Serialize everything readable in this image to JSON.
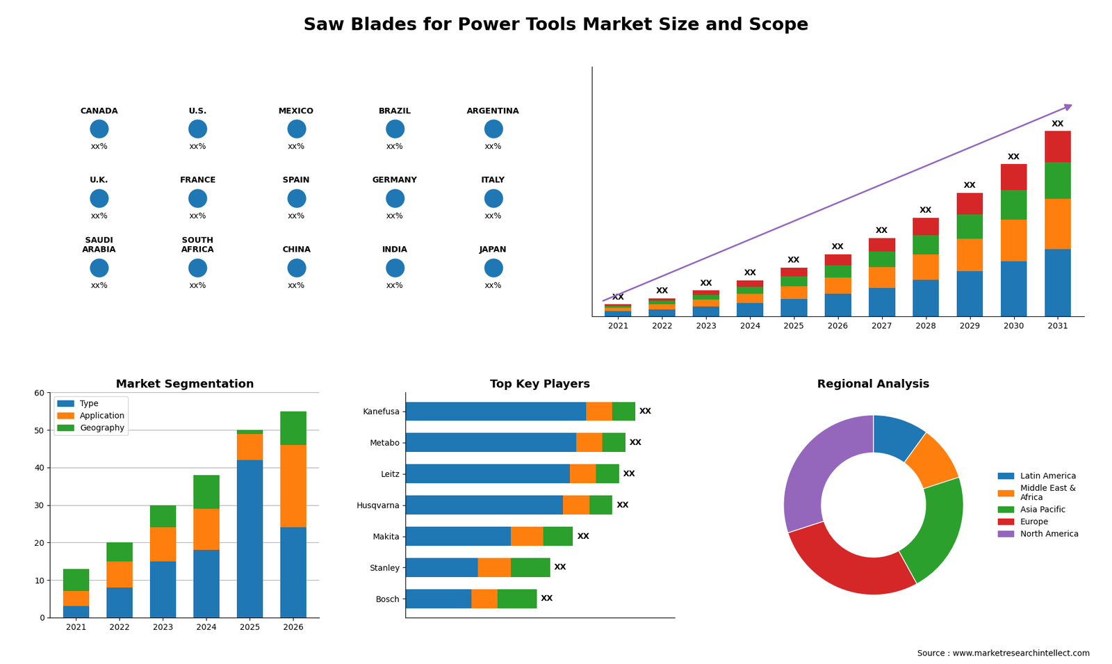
{
  "title": "Saw Blades for Power Tools Market Size and Scope",
  "annotations": [
    "Source : www.marketresearchintellect.com"
  ],
  "chart_data": [
    {
      "type": "map",
      "categories": [
        "CANADA",
        "U.S.",
        "MEXICO",
        "BRAZIL",
        "ARGENTINA",
        "U.K.",
        "FRANCE",
        "SPAIN",
        "GERMANY",
        "ITALY",
        "SAUDI\nARABIA",
        "SOUTH\nAFRICA",
        "CHINA",
        "INDIA",
        "JAPAN"
      ],
      "annotations": [
        "xx%",
        "xx%",
        "xx%",
        "xx%",
        "xx%",
        "xx%",
        "xx%",
        "xx%",
        "xx%",
        "xx%",
        "xx%",
        "xx%",
        "xx%",
        "xx%",
        "xx%"
      ]
    },
    {
      "type": "bar",
      "stacked": true,
      "categories": [
        "2021",
        "2022",
        "2023",
        "2024",
        "2025",
        "2026",
        "2027",
        "2028",
        "2029",
        "2030",
        "2031"
      ],
      "series": [
        {
          "values": [
            1.5,
            2.0,
            2.8,
            3.8,
            5.0,
            6.5,
            8.2,
            10.5,
            13.0,
            16.0,
            19.5
          ]
        },
        {
          "values": [
            1.0,
            1.5,
            2.0,
            2.8,
            3.8,
            4.8,
            6.0,
            7.5,
            9.5,
            12.0,
            14.5
          ]
        },
        {
          "values": [
            0.5,
            1.0,
            1.5,
            2.0,
            2.8,
            3.5,
            4.5,
            5.5,
            7.0,
            8.5,
            10.5
          ]
        },
        {
          "values": [
            0.5,
            0.8,
            1.2,
            1.8,
            2.5,
            3.2,
            4.0,
            5.0,
            6.2,
            7.5,
            9.0
          ]
        }
      ],
      "data_labels": true,
      "value_labels": [
        "XX",
        "XX",
        "XX",
        "XX",
        "XX",
        "XX",
        "XX",
        "XX",
        "XX",
        "XX",
        "XX"
      ],
      "ylim": [
        0,
        72.225
      ],
      "tick_labels": "x"
    },
    {
      "type": "bar",
      "title": "Market Segmentation",
      "stacked": true,
      "categories": [
        "2021",
        "2022",
        "2023",
        "2024",
        "2025",
        "2026"
      ],
      "series": [
        {
          "name": "Type",
          "values": [
            3,
            8,
            15,
            18,
            42,
            24
          ]
        },
        {
          "name": "Application",
          "values": [
            4,
            7,
            9,
            11,
            7,
            22
          ]
        },
        {
          "name": "Geography",
          "values": [
            6,
            5,
            6,
            9,
            1,
            9
          ]
        }
      ],
      "ylim": [
        0,
        60
      ],
      "yticks": [
        0,
        10,
        20,
        30,
        40,
        50,
        60
      ],
      "grid": true,
      "legend": "upper left"
    },
    {
      "type": "bar",
      "title": "Top Key Players",
      "orientation": "horizontal",
      "stacked": true,
      "categories": [
        "Kanefusa",
        "Metabo",
        "Leitz",
        "Husqvarna",
        "Makita",
        "Stanley",
        "Bosch"
      ],
      "series": [
        {
          "values": [
            55,
            52,
            50,
            48,
            32,
            22,
            20
          ]
        },
        {
          "values": [
            8,
            8,
            8,
            8,
            10,
            10,
            8
          ]
        },
        {
          "values": [
            7,
            7,
            7,
            7,
            9,
            12,
            12
          ]
        }
      ],
      "data_labels": true,
      "value_labels": [
        "XX",
        "XX",
        "XX",
        "XX",
        "XX",
        "XX",
        "XX"
      ],
      "xlim": [
        0,
        82
      ],
      "tick_labels": "y"
    },
    {
      "type": "pie",
      "title": "Regional Analysis",
      "categories": [
        "Latin America",
        "Middle East &\nAfrica",
        "Asia Pacific",
        "Europe",
        "North America"
      ],
      "values": [
        10,
        10,
        22,
        28,
        30
      ],
      "legend": "center left"
    }
  ]
}
